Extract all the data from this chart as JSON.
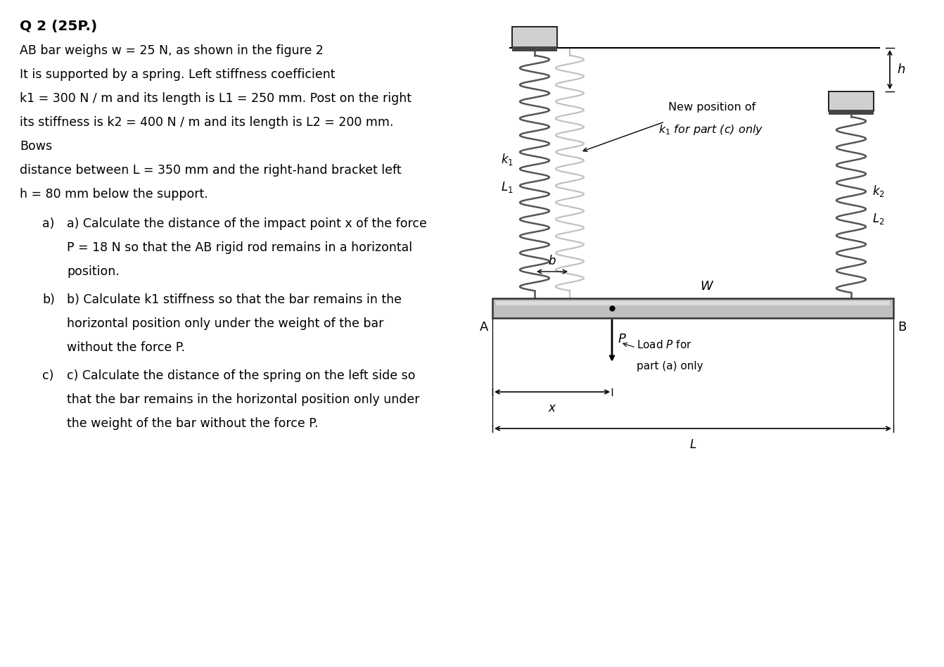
{
  "bg_color": "#ffffff",
  "title": "Q 2 (25P.)",
  "lines": [
    "AB bar weighs w = 25 N, as shown in the figure 2",
    "It is supported by a spring. Left stiffness coefficient",
    "k1 = 300 N / m and its length is L1 = 250 mm. Post on the right",
    "its stiffness is k2 = 400 N / m and its length is L2 = 200 mm.",
    "Bows",
    "distance between L = 350 mm and the right-hand bracket left",
    "h = 80 mm below the support."
  ],
  "items": [
    [
      "a)",
      "a) Calculate the distance of the impact point x of the force",
      "P = 18 N so that the AB rigid rod remains in a horizontal",
      "position."
    ],
    [
      "b)",
      "b) Calculate k1 stiffness so that the bar remains in the",
      "horizontal position only under the weight of the bar",
      "without the force P."
    ],
    [
      "c)",
      "c) Calculate the distance of the spring on the left side so",
      "that the bar remains in the horizontal position only under",
      "the weight of the bar without the force P."
    ]
  ],
  "spring_color_dark": "#555555",
  "spring_color_light": "#bbbbbb",
  "bar_color": "#c0c0c0",
  "bar_edge": "#333333"
}
